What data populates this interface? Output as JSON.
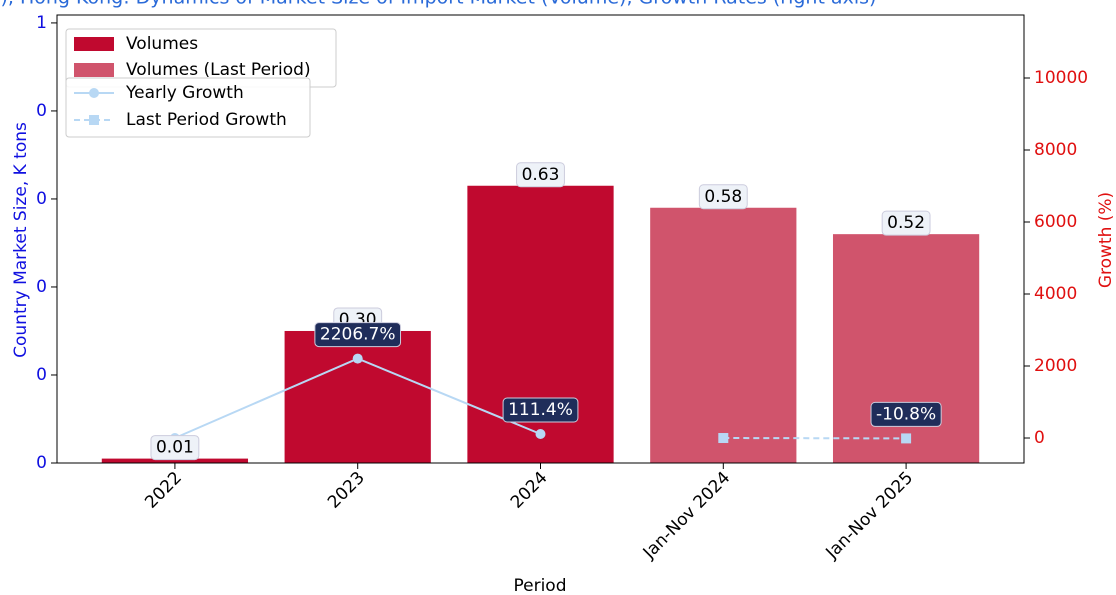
{
  "chart_data": {
    "type": "bar",
    "title": "c), Hong Kong: Dynamics of Market Size of Import Market (Volume), Growth Rates (right axis)",
    "xlabel": "Period",
    "ylabel": "Country Market Size, K tons",
    "y2label": "Growth (%)",
    "categories": [
      "2022",
      "2023",
      "2024",
      "Jan-Nov 2024",
      "Jan-Nov 2025"
    ],
    "series": [
      {
        "name": "Volumes",
        "color": "#c0092f",
        "values": [
          0.01,
          0.3,
          0.63,
          null,
          null
        ],
        "value_labels": [
          "0.01",
          "0.30",
          "0.63",
          null,
          null
        ]
      },
      {
        "name": "Volumes (Last Period)",
        "color": "#d0546c",
        "values": [
          null,
          null,
          null,
          0.58,
          0.52
        ],
        "value_labels": [
          null,
          null,
          null,
          "0.58",
          "0.52"
        ]
      },
      {
        "name": "Yearly Growth",
        "color": "#b8d8f4",
        "axis": "y2",
        "values": [
          0,
          2206.7,
          111.4,
          null,
          null
        ],
        "value_labels": [
          null,
          "2206.7%",
          "111.4%",
          null,
          null
        ]
      },
      {
        "name": "Last Period Growth",
        "color": "#b8d8f4",
        "axis": "y2",
        "values": [
          null,
          null,
          null,
          0,
          -10.8
        ],
        "value_labels": [
          null,
          null,
          null,
          null,
          "-10.8%"
        ]
      }
    ],
    "ylim": [
      0,
      1.018
    ],
    "yticks": [
      {
        "value": 0,
        "label": "0"
      },
      {
        "value": 0.2,
        "label": "0"
      },
      {
        "value": 0.4,
        "label": "0"
      },
      {
        "value": 0.6,
        "label": "0"
      },
      {
        "value": 0.8,
        "label": "0"
      },
      {
        "value": 1.0,
        "label": "1"
      }
    ],
    "y2lim": [
      -694,
      11750
    ],
    "y2ticks": [
      0,
      2000,
      4000,
      6000,
      8000,
      10000
    ],
    "legend": "upper left"
  }
}
